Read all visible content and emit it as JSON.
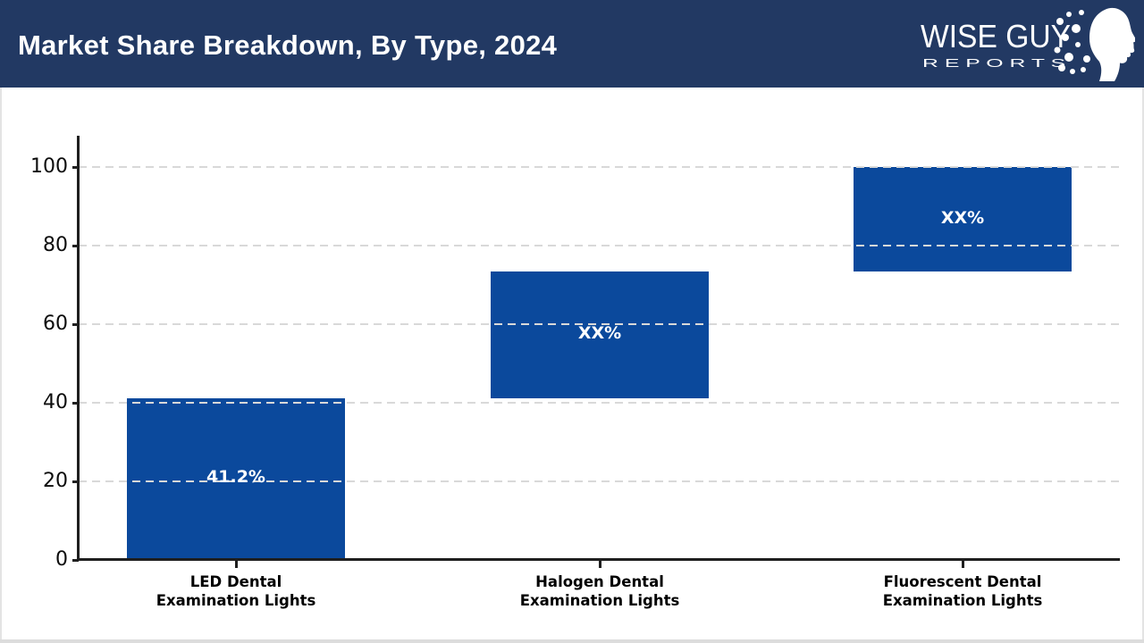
{
  "header": {
    "title": "Market Share Breakdown, By Type, 2024",
    "logo": {
      "line1": "WISE GUY",
      "line2": "R E P O R T S"
    }
  },
  "watermark": {
    "line1": "WISE GUY",
    "line2": "R E P O R T S"
  },
  "chart_data": {
    "type": "bar",
    "subtype": "waterfall",
    "title": "Market Share Breakdown, By Type, 2024",
    "categories": [
      [
        "LED Dental",
        "Examination Lights"
      ],
      [
        "Halogen Dental",
        "Examination Lights"
      ],
      [
        "Fluorescent Dental",
        "Examination Lights"
      ]
    ],
    "segments": [
      {
        "label": "41.2%",
        "start": 0,
        "end": 41.2
      },
      {
        "label": "XX%",
        "start": 41.2,
        "end": 73.3
      },
      {
        "label": "XX%",
        "start": 73.3,
        "end": 100
      }
    ],
    "yticks": [
      0,
      20,
      40,
      60,
      80,
      100
    ],
    "ylim": [
      0,
      108
    ],
    "grid": "horizontal-dashed",
    "legend": "none",
    "bar_color": "#0b499c",
    "value_label_color": "#ffffff",
    "gridline_color": "#d9d9d9",
    "axis_color": "#1f1f1f",
    "header_bg": "#223963",
    "watermark_color": "#f2f2f4"
  }
}
